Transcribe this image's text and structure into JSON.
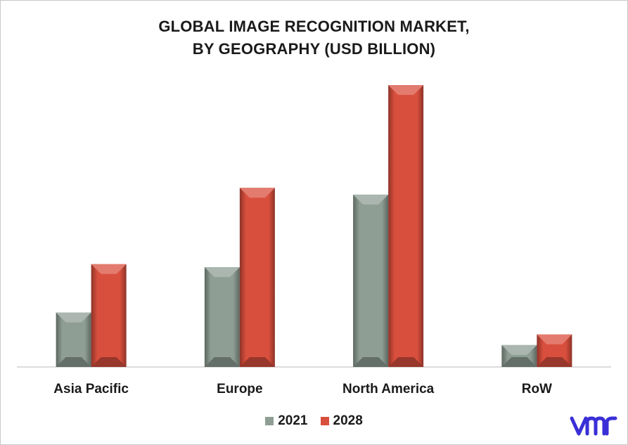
{
  "title_line1": "GLOBAL IMAGE RECOGNITION MARKET,",
  "title_line2": "BY GEOGRAPHY (USD BILLION)",
  "logo_text": "vm",
  "colors": {
    "series_2021": "#8e9e94",
    "series_2028": "#d94f3d",
    "logo": "#3a2fd6"
  },
  "chart_data": {
    "type": "bar",
    "title": "GLOBAL IMAGE RECOGNITION MARKET, BY GEOGRAPHY (USD BILLION)",
    "xlabel": "",
    "ylabel": "",
    "categories": [
      "Asia Pacific",
      "Europe",
      "North America",
      "RoW"
    ],
    "series": [
      {
        "name": "2021",
        "values": [
          7.2,
          13.2,
          22.8,
          2.9
        ]
      },
      {
        "name": "2028",
        "values": [
          13.6,
          23.7,
          37.3,
          4.3
        ]
      }
    ],
    "ylim": [
      0,
      40
    ],
    "grid": false,
    "legend_position": "bottom"
  }
}
